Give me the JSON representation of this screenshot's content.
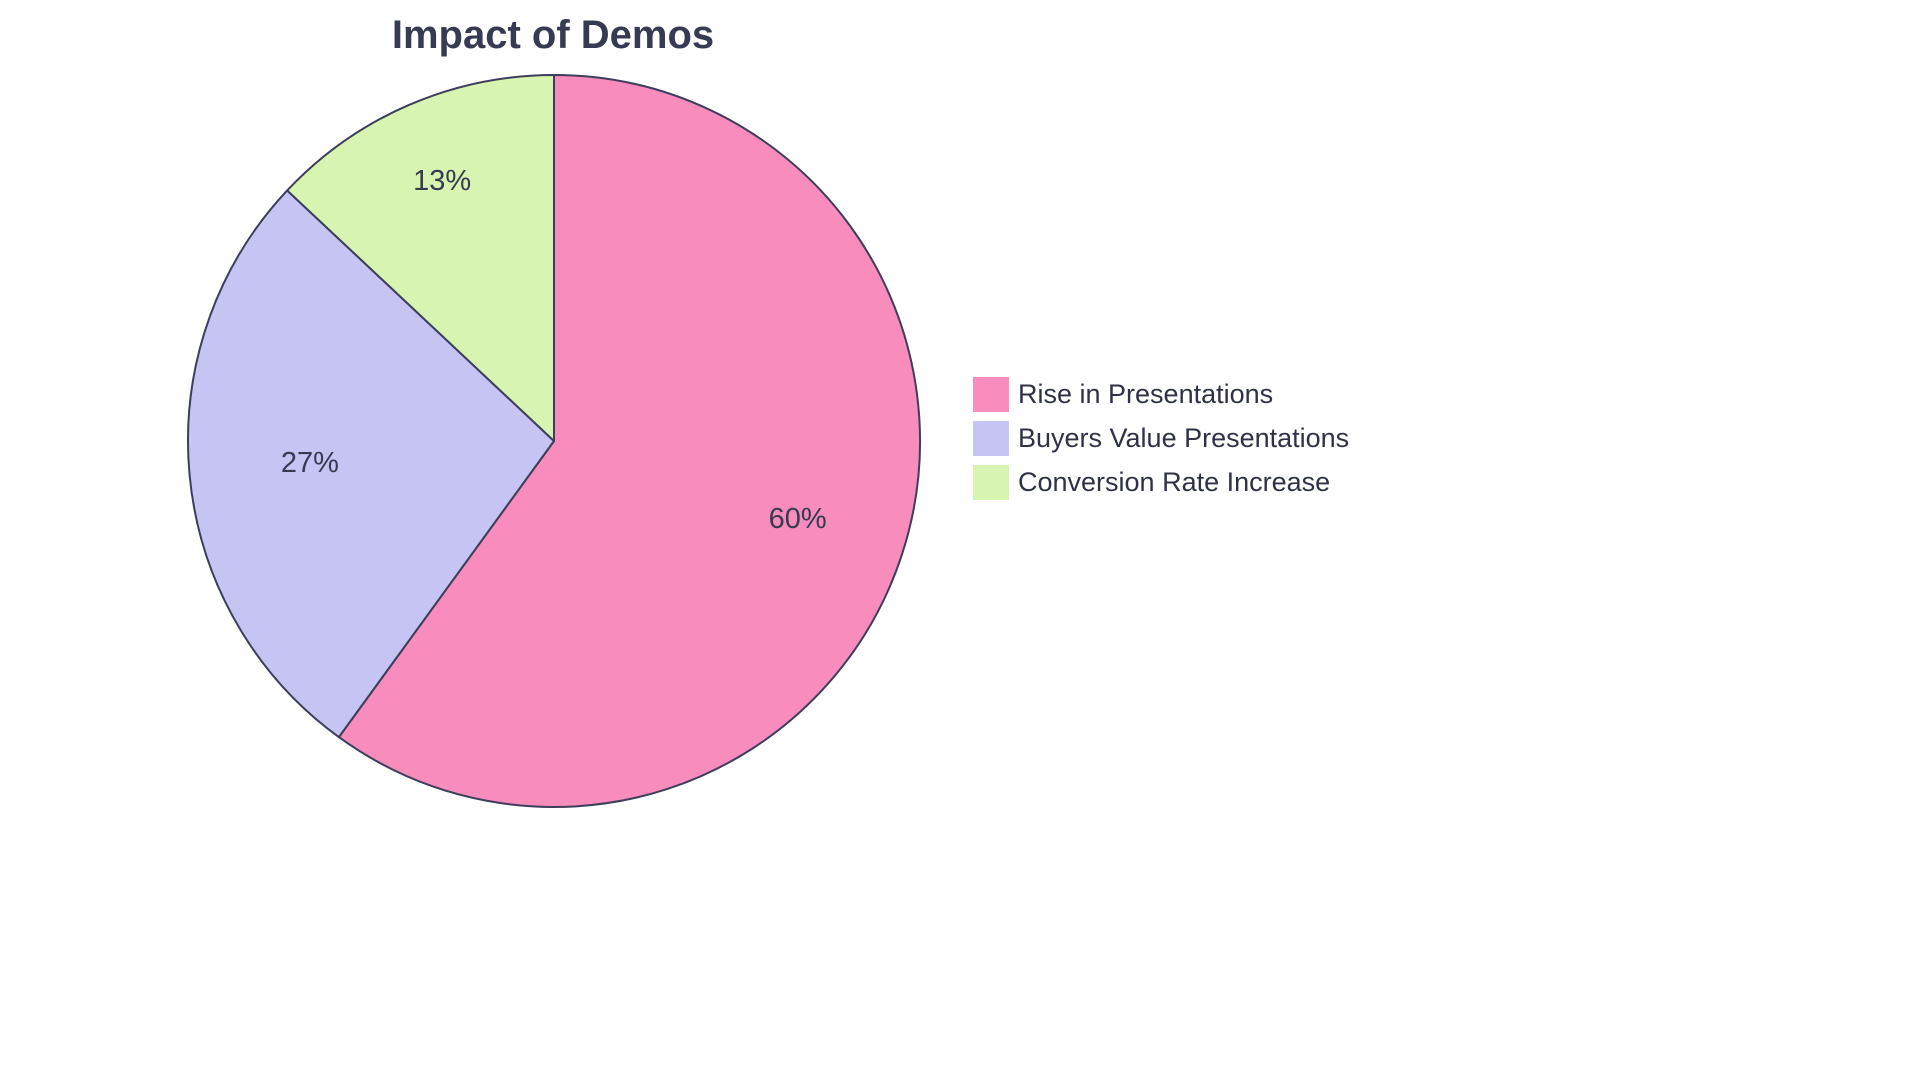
{
  "chart_data": {
    "type": "pie",
    "title": "Impact of Demos",
    "labels": [
      "Rise in Presentations",
      "Buyers Value Presentations",
      "Conversion Rate Increase"
    ],
    "values": [
      60,
      27,
      13
    ],
    "value_labels": [
      "60%",
      "27%",
      "13%"
    ],
    "colors": [
      "#F78CBD",
      "#C6C4F2",
      "#D7F5B0"
    ],
    "stroke_color": "#3C3E5B",
    "text_color": "#373B52",
    "legend_position": "right",
    "start_angle_deg": 0,
    "direction": "clockwise"
  }
}
